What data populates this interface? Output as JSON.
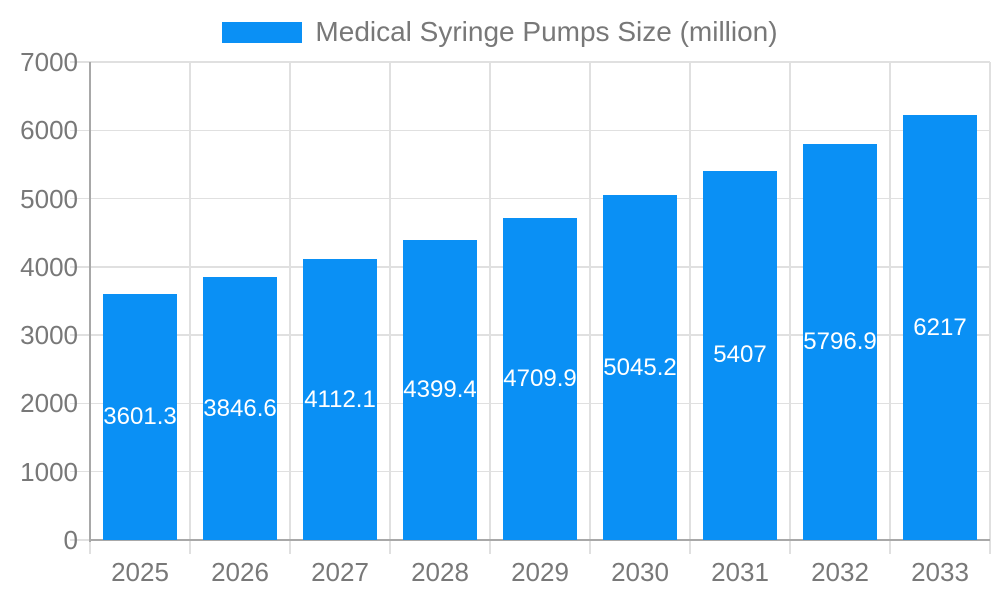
{
  "legend": {
    "label": "Medical Syringe Pumps Size (million)"
  },
  "chart_data": {
    "type": "bar",
    "title": "Medical Syringe Pumps Size (million)",
    "xlabel": "",
    "ylabel": "",
    "categories": [
      "2025",
      "2026",
      "2027",
      "2028",
      "2029",
      "2030",
      "2031",
      "2032",
      "2033"
    ],
    "series": [
      {
        "name": "Medical Syringe Pumps Size (million)",
        "values": [
          3601.3,
          3846.6,
          4112.1,
          4399.4,
          4709.9,
          5045.2,
          5407,
          5796.9,
          6217
        ]
      }
    ],
    "bar_value_labels": [
      "3601.3",
      "3846.6",
      "4112.1",
      "4399.4",
      "4709.9",
      "5045.2",
      "5407",
      "5796.9",
      "6217"
    ],
    "ylim": [
      0,
      7000
    ],
    "y_ticks": [
      0,
      1000,
      2000,
      3000,
      4000,
      5000,
      6000,
      7000
    ],
    "grid": "horizontal-and-vertical",
    "legend_position": "top-center",
    "value_label_position": "centered-inside-bar"
  },
  "colors": {
    "bar": "#0a90f5",
    "bar_label_text": "#ffffff",
    "axis": "#a8a8a8",
    "grid": "#e0e0e0",
    "text": "#787878",
    "background": "#ffffff"
  }
}
